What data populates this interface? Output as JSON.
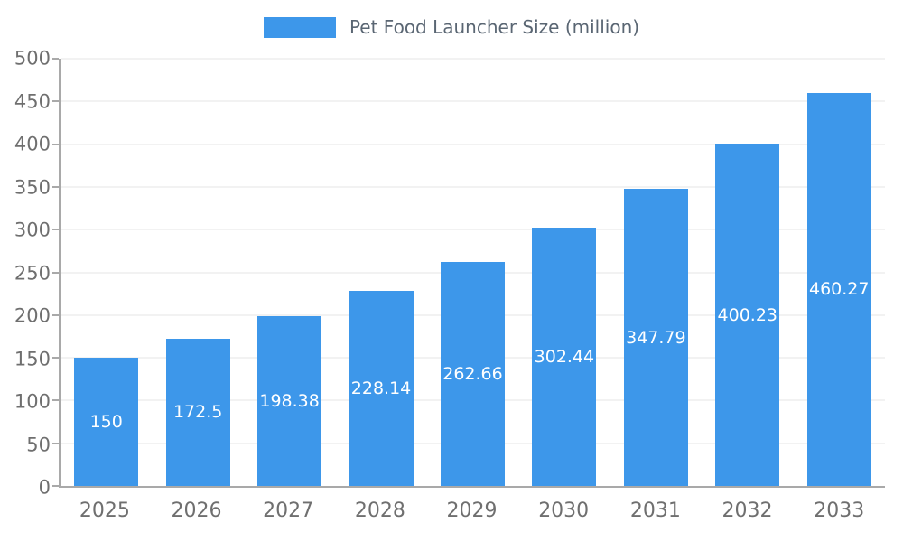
{
  "chart_data": {
    "type": "bar",
    "title": "Pet Food Launcher Size (million)",
    "categories": [
      "2025",
      "2026",
      "2027",
      "2028",
      "2029",
      "2030",
      "2031",
      "2032",
      "2033"
    ],
    "values": [
      150,
      172.5,
      198.38,
      228.14,
      262.66,
      302.44,
      347.79,
      400.23,
      460.27
    ],
    "value_labels": [
      "150",
      "172.5",
      "198.38",
      "228.14",
      "262.66",
      "302.44",
      "347.79",
      "400.23",
      "460.27"
    ],
    "xlabel": "",
    "ylabel": "",
    "ylim": [
      0,
      500
    ],
    "yticks": [
      0,
      50,
      100,
      150,
      200,
      250,
      300,
      350,
      400,
      450,
      500
    ],
    "grid": "horizontal",
    "legend_position": "top-center",
    "colors": {
      "bar": "#3d97ea",
      "grid": "#e6e6e6",
      "axis": "#a9a9a9",
      "ticklbl": "#6f6f6f",
      "title": "#5a6673",
      "valuelbl": "#ffffff"
    }
  }
}
